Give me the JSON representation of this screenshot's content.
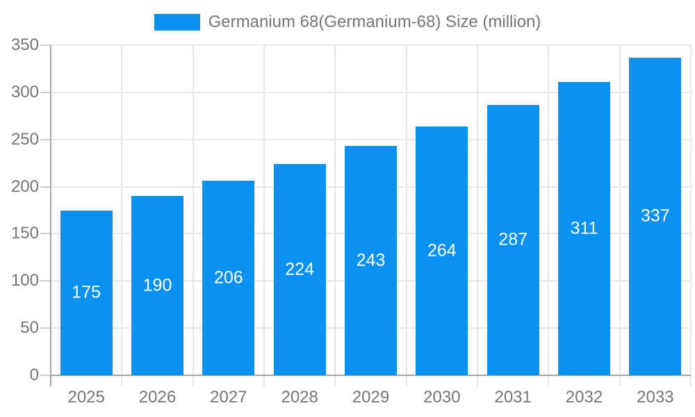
{
  "chart_data": {
    "type": "bar",
    "title": "Germanium 68(Germanium-68) Size (million)",
    "legend_position": "top",
    "categories": [
      "2025",
      "2026",
      "2027",
      "2028",
      "2029",
      "2030",
      "2031",
      "2032",
      "2033"
    ],
    "series": [
      {
        "name": "Germanium 68(Germanium-68) Size (million)",
        "values": [
          175,
          190,
          206,
          224,
          243,
          264,
          287,
          311,
          337
        ]
      }
    ],
    "xlabel": "",
    "ylabel": "",
    "ylim": [
      0,
      350
    ],
    "yticks": [
      0,
      50,
      100,
      150,
      200,
      250,
      300,
      350
    ],
    "grid": true,
    "value_labels_position": "inside-center"
  },
  "colors": {
    "bar": "#0991F2",
    "gridline": "#e7e7e7",
    "tick": "#cccccc",
    "axis_line": "#a6a6a6",
    "label_text": "#757575",
    "value_text": "#ffffff",
    "background": "#ffffff"
  }
}
